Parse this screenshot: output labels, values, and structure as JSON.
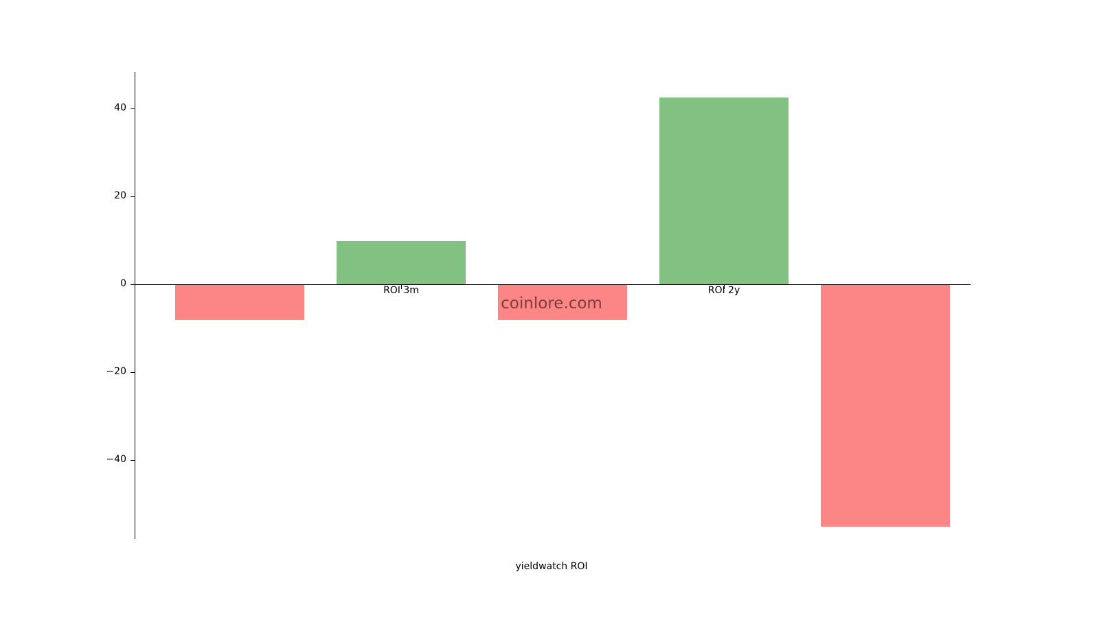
{
  "chart_data": {
    "type": "bar",
    "title": "yieldwatch ROI",
    "watermark": "coinlore.com",
    "categories": [
      "",
      "ROI 3m",
      "",
      "ROI 2y",
      ""
    ],
    "values": [
      -8,
      10,
      -8,
      42.7,
      -55
    ],
    "bar_colors": [
      "#fc8585",
      "#82c182",
      "#fc8585",
      "#82c182",
      "#fc8585"
    ],
    "positive_color": "#82c182",
    "negative_color": "#fc8585",
    "yticks": [
      {
        "value": 40,
        "label": "40"
      },
      {
        "value": 20,
        "label": "20"
      },
      {
        "value": 0,
        "label": "0"
      },
      {
        "value": -20,
        "label": "−20"
      },
      {
        "value": -40,
        "label": "−40"
      }
    ],
    "xticks": [
      {
        "index": 1,
        "label": "ROI 3m"
      },
      {
        "index": 3,
        "label": "ROI 2y"
      }
    ],
    "ylim": [
      -59,
      48
    ],
    "grid": false,
    "legend": null,
    "axis_color": "#000000",
    "text_color": "#000000",
    "watermark_color": "#7d3c3c",
    "background_color": "#ffffff"
  }
}
